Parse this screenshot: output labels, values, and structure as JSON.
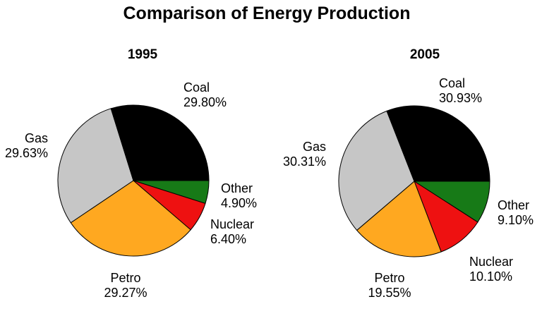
{
  "header": {
    "title": "Comparison of Energy Production"
  },
  "chart_data": [
    {
      "type": "pie",
      "title": "1995",
      "unit": "percent",
      "start_angle": "3-oclock",
      "direction": "clockwise",
      "labels_position": "outside",
      "legend": "none",
      "slices": [
        {
          "label": "Other",
          "value": 4.9,
          "percent_label": "4.90%",
          "color": "#177A17"
        },
        {
          "label": "Nuclear",
          "value": 6.4,
          "percent_label": "6.40%",
          "color": "#EE1111"
        },
        {
          "label": "Petro",
          "value": 29.27,
          "percent_label": "29.27%",
          "color": "#FFA820"
        },
        {
          "label": "Gas",
          "value": 29.63,
          "percent_label": "29.63%",
          "color": "#C6C6C6"
        },
        {
          "label": "Coal",
          "value": 29.8,
          "percent_label": "29.80%",
          "color": "#000000"
        }
      ]
    },
    {
      "type": "pie",
      "title": "2005",
      "unit": "percent",
      "start_angle": "3-oclock",
      "direction": "clockwise",
      "labels_position": "outside",
      "legend": "none",
      "slices": [
        {
          "label": "Other",
          "value": 9.1,
          "percent_label": "9.10%",
          "color": "#177A17"
        },
        {
          "label": "Nuclear",
          "value": 10.1,
          "percent_label": "10.10%",
          "color": "#EE1111"
        },
        {
          "label": "Petro",
          "value": 19.55,
          "percent_label": "19.55%",
          "color": "#FFA820"
        },
        {
          "label": "Gas",
          "value": 30.31,
          "percent_label": "30.31%",
          "color": "#C6C6C6"
        },
        {
          "label": "Coal",
          "value": 30.93,
          "percent_label": "30.93%",
          "color": "#000000"
        }
      ]
    }
  ]
}
